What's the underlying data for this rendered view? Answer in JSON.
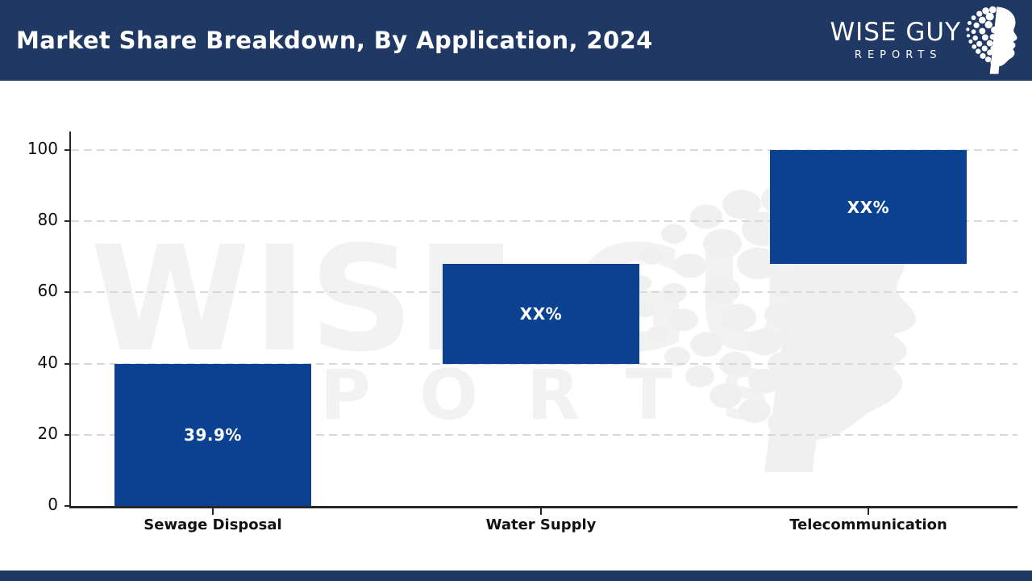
{
  "header": {
    "title": "Market Share Breakdown, By Application, 2024",
    "brand": {
      "name": "WISE GUY",
      "tagline": "REPORTS"
    }
  },
  "watermark": {
    "line1": "WISE GUY",
    "line2": "REPORTS"
  },
  "chart_data": {
    "type": "bar",
    "subtype": "waterfall",
    "title": "Market Share Breakdown, By Application, 2024",
    "categories": [
      "Sewage Disposal",
      "Water Supply",
      "Telecommunication"
    ],
    "segments": [
      {
        "category": "Sewage Disposal",
        "start": 0,
        "end": 39.9,
        "label": "39.9%"
      },
      {
        "category": "Water Supply",
        "start": 39.9,
        "end": 68,
        "label": "XX%"
      },
      {
        "category": "Telecommunication",
        "start": 68,
        "end": 100,
        "label": "XX%"
      }
    ],
    "xlabel": "",
    "ylabel": "",
    "ylim": [
      0,
      100
    ],
    "yticks": [
      0,
      20,
      40,
      60,
      80,
      100
    ],
    "grid": "horizontal-dashed",
    "legend": "none",
    "bar_color": "#0a4291",
    "bar_label_color": "#ffffff"
  },
  "colors": {
    "header_bg": "#1f3864",
    "header_text": "#ffffff",
    "bar": "#0a4291",
    "grid": "#d9d9d9",
    "axis": "#262626",
    "tick_text": "#111111",
    "watermark": "#f2f2f2",
    "footer_bg": "#1f3864"
  }
}
